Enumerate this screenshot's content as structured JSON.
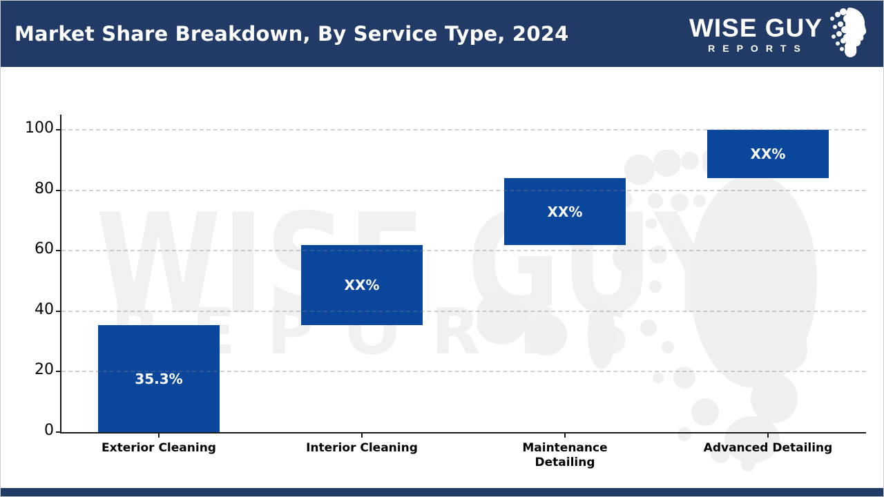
{
  "header": {
    "title": "Market Share Breakdown, By Service Type, 2024",
    "logo": {
      "name1": "WISE GUY",
      "name2": "REPORTS"
    }
  },
  "watermark": {
    "text1": "WISE GUY",
    "text2": "REPORTS"
  },
  "chart_data": {
    "type": "bar",
    "subtype": "waterfall-floating-segments",
    "title": "Market Share Breakdown, By Service Type, 2024",
    "categories": [
      "Exterior Cleaning",
      "Interior Cleaning",
      "Maintenance\nDetailing",
      "Advanced Detailing"
    ],
    "segments": [
      {
        "category": "Exterior Cleaning",
        "start": 0,
        "end": 35.3,
        "label": "35.3%"
      },
      {
        "category": "Interior Cleaning",
        "start": 35.3,
        "end": 61.8,
        "label": "XX%"
      },
      {
        "category": "Maintenance Detailing",
        "start": 61.8,
        "end": 84.0,
        "label": "XX%"
      },
      {
        "category": "Advanced Detailing",
        "start": 84.0,
        "end": 100,
        "label": "XX%"
      }
    ],
    "yticks": [
      0,
      20,
      40,
      60,
      80,
      100
    ],
    "ylim": [
      0,
      105
    ],
    "xlabel": "",
    "ylabel": "",
    "grid": {
      "horizontal": true,
      "style": "dashed"
    },
    "legend": null
  },
  "colors": {
    "header_bg": "#213a66",
    "footer_bg": "#213a66",
    "bar": "#0a469b",
    "bar_label": "#ffffff",
    "axis": "#1a1a1a",
    "watermark": "#f1f1f1"
  }
}
